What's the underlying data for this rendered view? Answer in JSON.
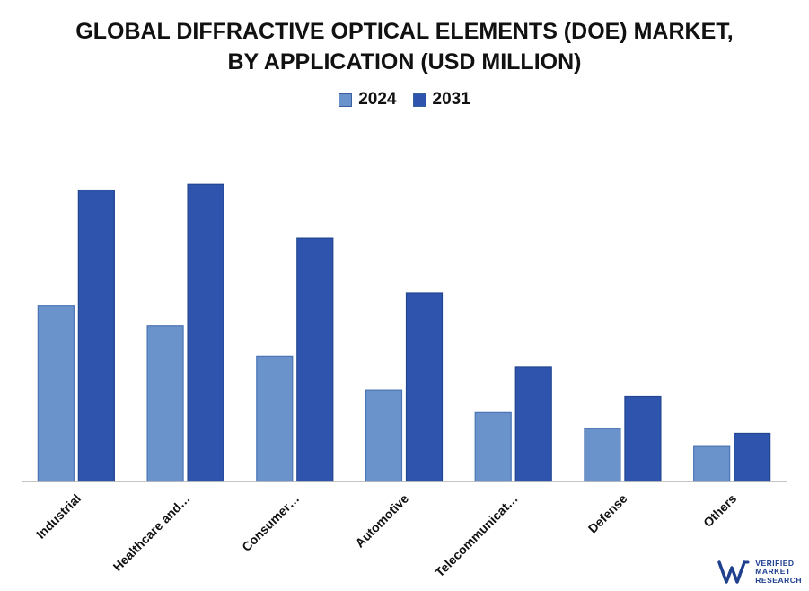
{
  "chart_data": {
    "type": "bar",
    "title_line1": "GLOBAL DIFFRACTIVE OPTICAL ELEMENTS (DOE) MARKET,",
    "title_line2": "BY APPLICATION (USD MILLION)",
    "categories": [
      "Industrial",
      "Healthcare and…",
      "Consumer…",
      "Automotive",
      "Telecommunicat…",
      "Defense",
      "Others"
    ],
    "series": [
      {
        "name": "2024",
        "values": [
          186,
          165,
          133,
          97,
          73,
          56,
          37
        ],
        "color": "#6a93cc"
      },
      {
        "name": "2031",
        "values": [
          309,
          315,
          258,
          200,
          121,
          90,
          51
        ],
        "color": "#2e54ae"
      }
    ],
    "ylim": [
      0,
      320
    ],
    "grid": false,
    "legend_position": "top-center",
    "xlabel": "",
    "ylabel": ""
  },
  "watermark": {
    "line1": "VERIFIED",
    "line2": "MARKET",
    "line3": "RESEARCH",
    "color": "#1f3f8f"
  }
}
